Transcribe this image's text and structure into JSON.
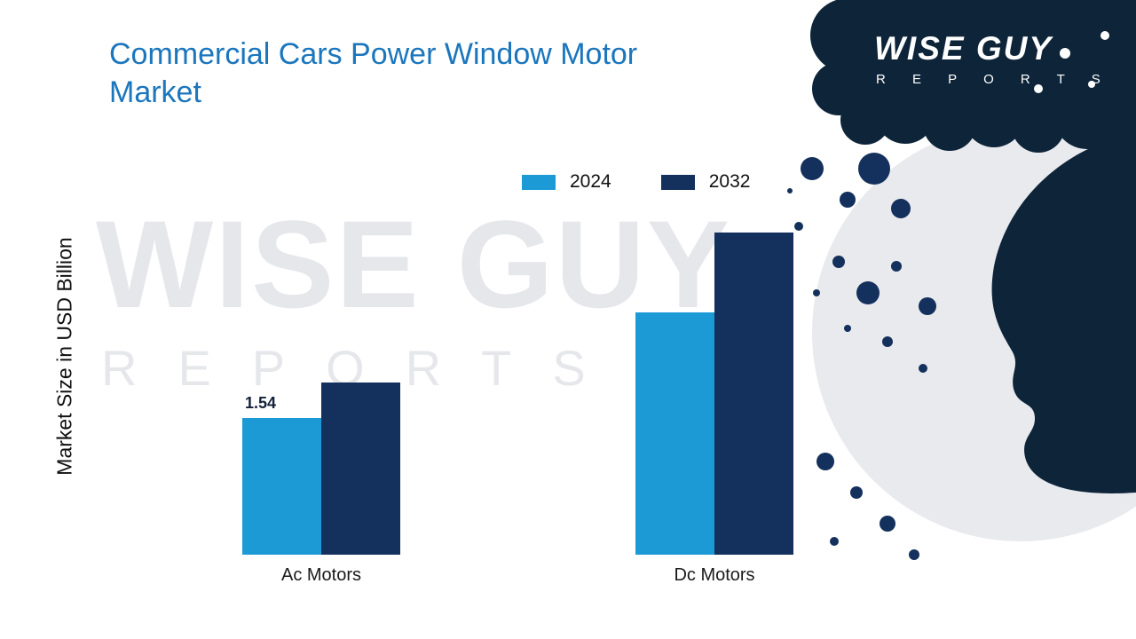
{
  "title": "Commercial Cars Power Window Motor Market",
  "logo": {
    "line1": "WISE GUY",
    "line2": "R E P O R T S"
  },
  "watermark": {
    "line1": "WISE GUY",
    "line2": "REPORTS"
  },
  "colors": {
    "title_blue": "#1b76bd",
    "series_2024": "#1b9ad6",
    "series_2032": "#14305c",
    "logo_navy": "#0d2439",
    "deco_gray": "#e9eaee",
    "watermark_gray": "#e6e7eb"
  },
  "chart_data": {
    "type": "bar",
    "categories": [
      "Ac Motors",
      "Dc Motors"
    ],
    "series": [
      {
        "name": "2024",
        "color": "#1b9ad6",
        "values": [
          1.54,
          2.73
        ]
      },
      {
        "name": "2032",
        "color": "#14305c",
        "values": [
          1.94,
          3.63
        ]
      }
    ],
    "title": "Commercial Cars Power Window Motor Market",
    "xlabel": "",
    "ylabel": "Market Size in USD Billion",
    "ylim": [
      0,
      4
    ],
    "grid": false,
    "legend_position": "top",
    "data_labels": {
      "Ac Motors": {
        "2024": "1.54"
      }
    }
  }
}
